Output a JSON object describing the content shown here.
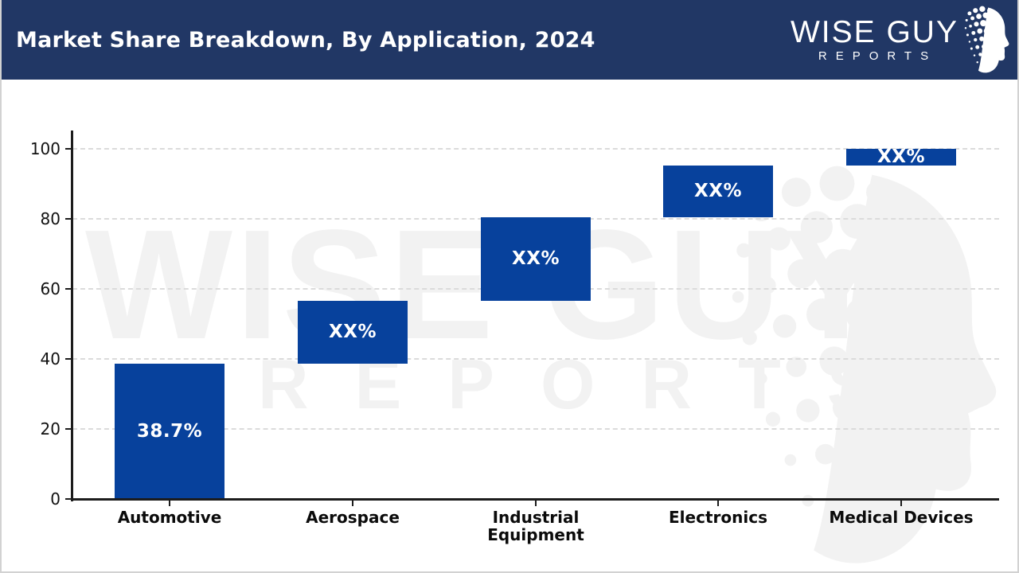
{
  "header": {
    "title": "Market Share Breakdown, By Application, 2024",
    "logo": {
      "brand_line1": "WISE GUY",
      "brand_line2": "REPORTS",
      "head_icon": "dotted-head-profile"
    }
  },
  "watermark": {
    "line1": "WISE GUY",
    "line2": "REPORTS"
  },
  "colors": {
    "header_bg": "#213765",
    "bar": "#07419C",
    "grid": "#dbdbdb",
    "axis": "#1c1c1c",
    "watermark": "#f2f2f2",
    "bar_label": "#ffffff"
  },
  "chart_data": {
    "type": "bar",
    "subtype": "waterfall",
    "title": "Market Share Breakdown, By Application, 2024",
    "xlabel": "",
    "ylabel": "",
    "ylim": [
      0,
      105
    ],
    "yticks": [
      0,
      20,
      40,
      60,
      80,
      100
    ],
    "grid": "dashed-horizontal",
    "legend": "none",
    "categories": [
      "Automotive",
      "Aerospace",
      "Industrial\nEquipment",
      "Electronics",
      "Medical Devices"
    ],
    "segments": [
      {
        "category": "Automotive",
        "start": 0,
        "end": 38.7,
        "label": "38.7%"
      },
      {
        "category": "Aerospace",
        "start": 38.7,
        "end": 56.6,
        "label": "XX%"
      },
      {
        "category": "Industrial Equipment",
        "start": 56.6,
        "end": 80.5,
        "label": "XX%"
      },
      {
        "category": "Electronics",
        "start": 80.5,
        "end": 95.3,
        "label": "XX%"
      },
      {
        "category": "Medical Devices",
        "start": 95.3,
        "end": 100,
        "label": "XX%"
      }
    ]
  }
}
